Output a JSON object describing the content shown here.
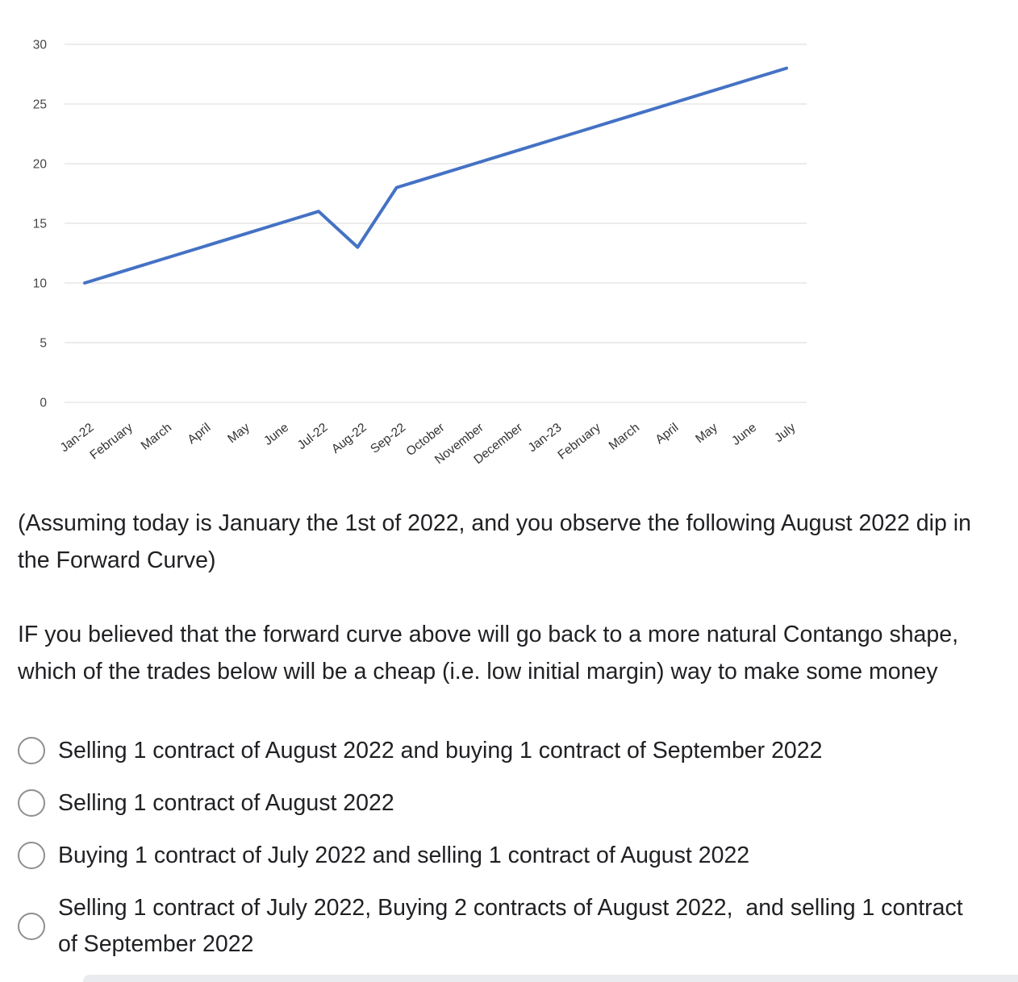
{
  "chart_data": {
    "type": "line",
    "categories": [
      "Jan-22",
      "February",
      "March",
      "April",
      "May",
      "June",
      "Jul-22",
      "Aug-22",
      "Sep-22",
      "October",
      "November",
      "December",
      "Jan-23",
      "February",
      "March",
      "April",
      "May",
      "June",
      "July"
    ],
    "values": [
      10,
      11,
      12,
      13,
      14,
      15,
      16,
      13,
      18,
      19,
      20,
      21,
      22,
      23,
      24,
      25,
      26,
      27,
      28
    ],
    "title": "",
    "xlabel": "",
    "ylabel": "",
    "ylim": [
      0,
      30
    ],
    "yticks": [
      0,
      5,
      10,
      15,
      20,
      25,
      30
    ],
    "grid": true,
    "legend": "none",
    "line_color": "#4472c4",
    "grid_color": "#d9d9d9",
    "axis_label_color": "#454545"
  },
  "question": {
    "context": "(Assuming today is January the 1st of 2022, and you observe the following August 2022 dip in the Forward Curve)",
    "prompt": "IF you believed that the forward curve above will go back to a more natural Contango shape, which of the trades below will be a cheap (i.e. low initial margin) way to make some money",
    "options": [
      {
        "label": "Selling 1 contract of August 2022 and buying 1 contract of September 2022",
        "selected": false
      },
      {
        "label": "Selling 1 contract of August 2022",
        "selected": false
      },
      {
        "label": "Buying 1 contract of July 2022 and selling 1 contract of August 2022",
        "selected": false
      },
      {
        "label": "Selling 1 contract of July 2022, Buying 2 contracts of August 2022,  and selling 1 contract of September 2022",
        "selected": false
      }
    ]
  }
}
